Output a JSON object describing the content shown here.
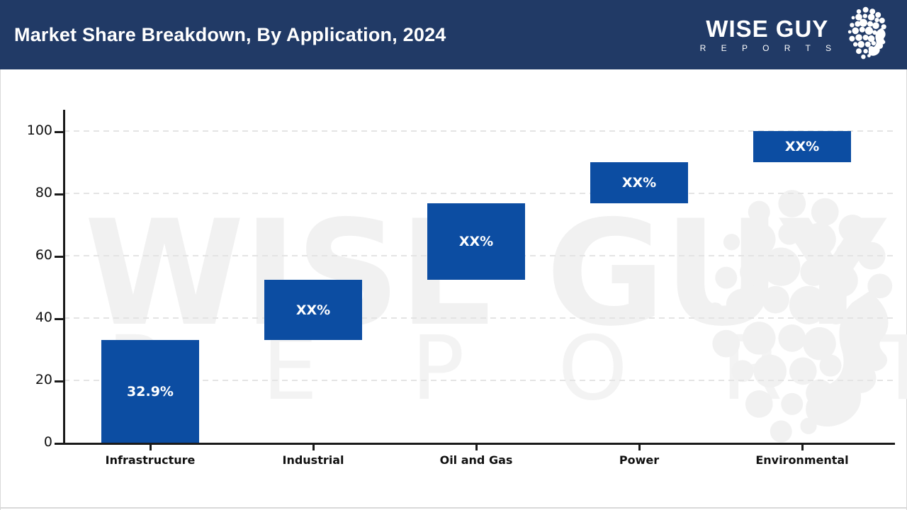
{
  "header": {
    "title": "Market Share Breakdown, By Application, 2024",
    "brand_name": "WISE GUY",
    "brand_sub": "R E P O R T S",
    "bg_color": "#213a66"
  },
  "watermark": {
    "line1": "WISE GUY",
    "line2": "R E P O R T S"
  },
  "chart_data": {
    "type": "bar",
    "subtype": "floating-waterfall",
    "title": "Market Share Breakdown, By Application, 2024",
    "categories": [
      "Infrastructure",
      "Industrial",
      "Oil and Gas",
      "Power",
      "Environmental"
    ],
    "series": [
      {
        "name": "Market Share",
        "segments": [
          {
            "category": "Infrastructure",
            "start": 0,
            "end": 32.9,
            "label": "32.9%"
          },
          {
            "category": "Industrial",
            "start": 32.9,
            "end": 52.3,
            "label": "XX%"
          },
          {
            "category": "Oil and Gas",
            "start": 52.3,
            "end": 76.8,
            "label": "XX%"
          },
          {
            "category": "Power",
            "start": 76.8,
            "end": 90.0,
            "label": "XX%"
          },
          {
            "category": "Environmental",
            "start": 90.0,
            "end": 100.0,
            "label": "XX%"
          }
        ]
      }
    ],
    "xlabel": "",
    "ylabel": "",
    "ylim": [
      0,
      100
    ],
    "yticks": [
      0,
      20,
      40,
      60,
      80,
      100
    ],
    "ytick_labels": [
      "0",
      "20",
      "40",
      "60",
      "80",
      "100"
    ],
    "grid": "horizontal-dashed",
    "legend": "none",
    "bar_color": "#0c4da2",
    "bar_label_color": "#ffffff",
    "axis_color": "#1a1a1a",
    "grid_color": "#e4e4e4",
    "watermark_color": "#f1f1f1"
  }
}
